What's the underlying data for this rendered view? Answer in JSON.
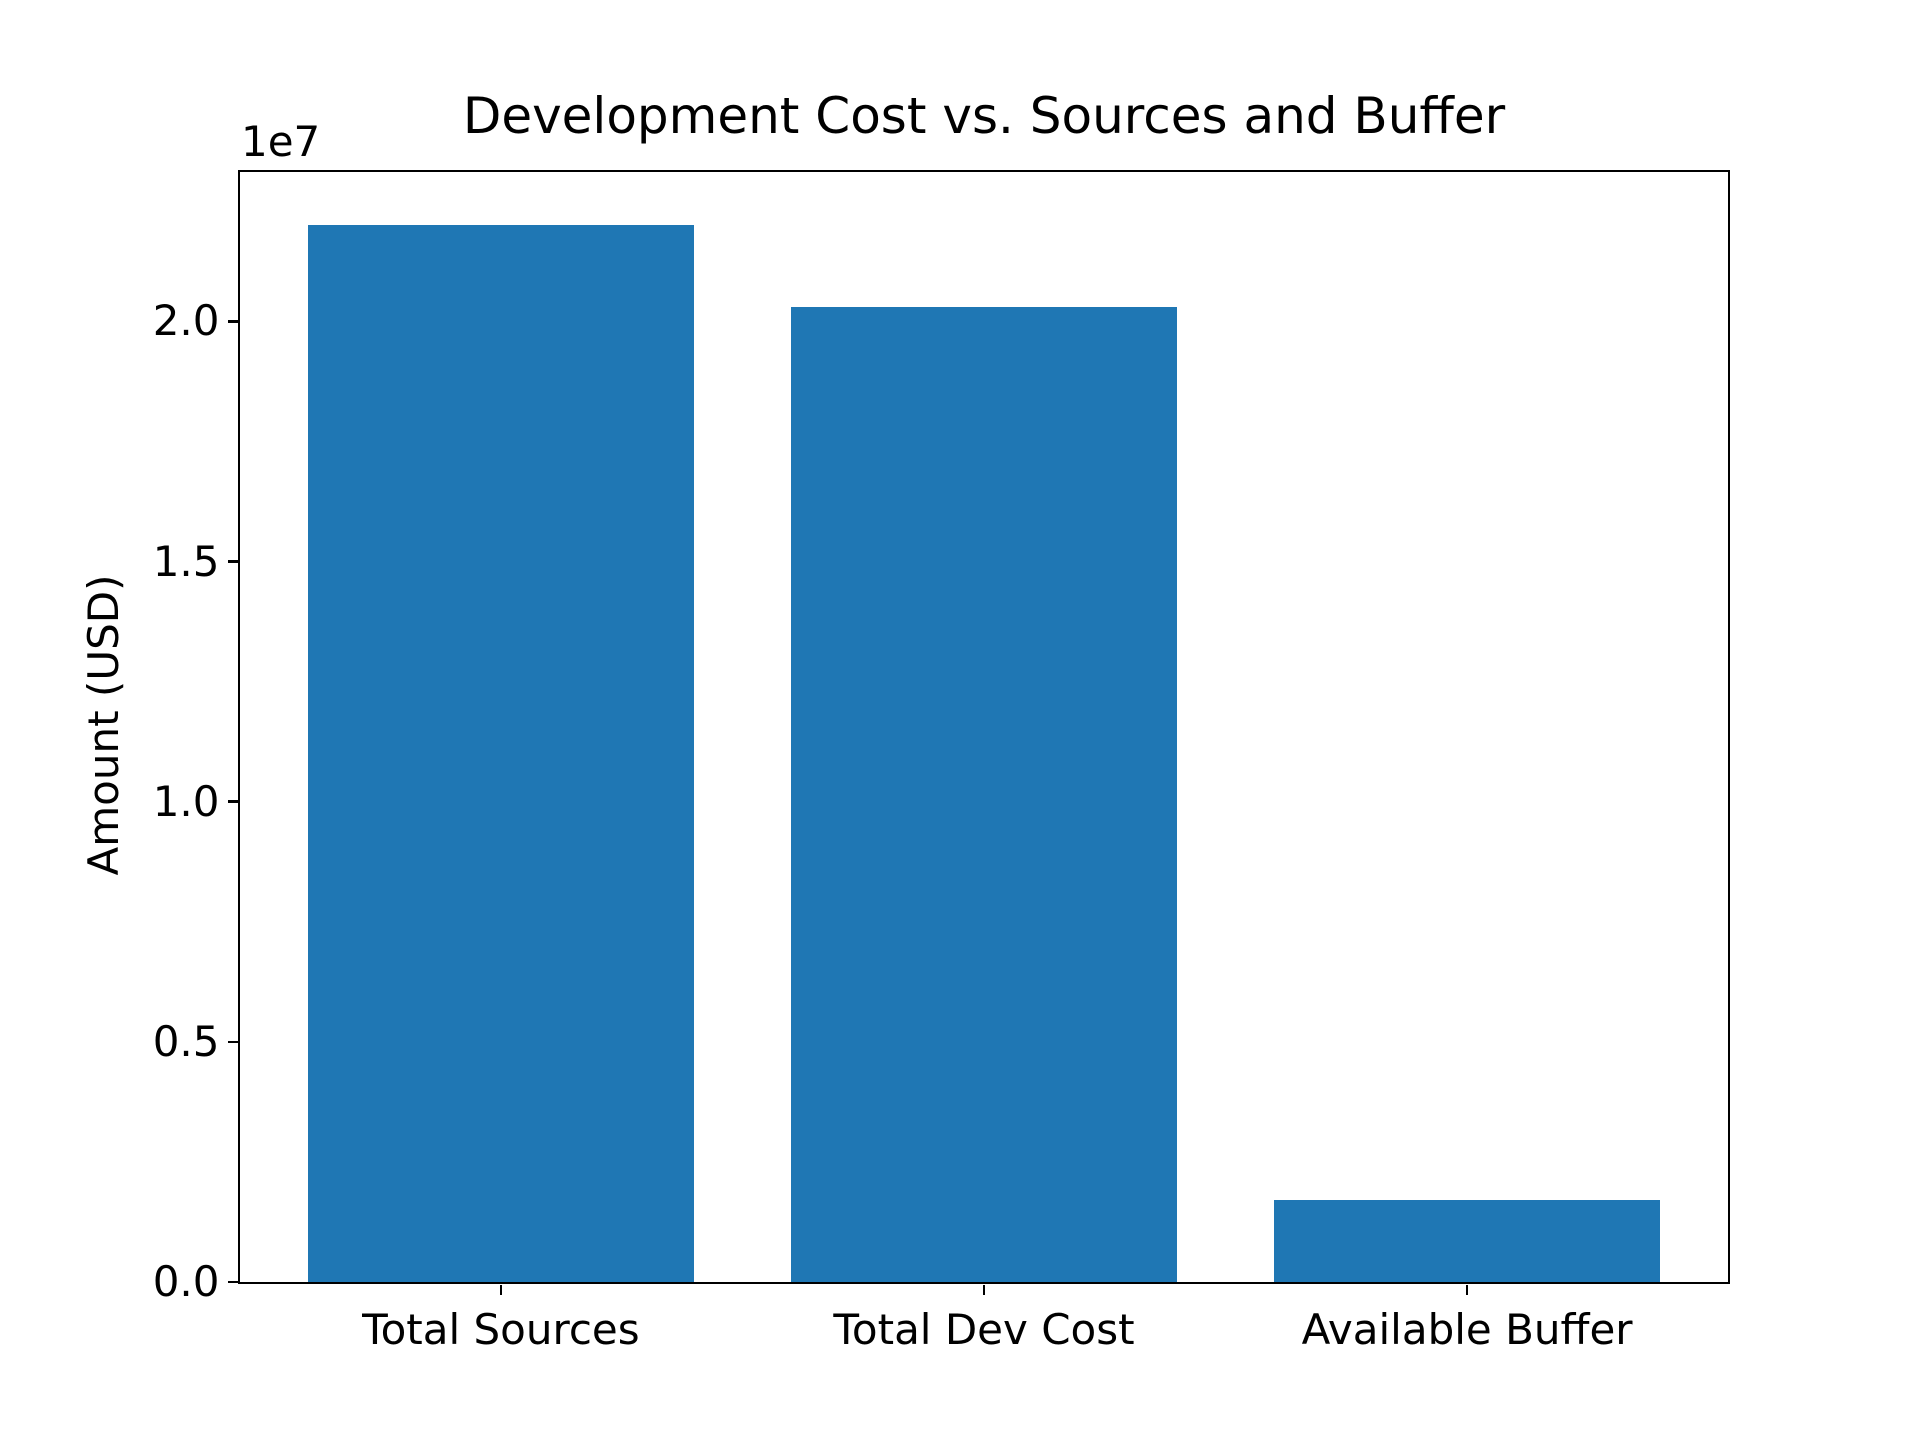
{
  "chart_data": {
    "type": "bar",
    "title": "Development Cost vs. Sources and Buffer",
    "categories": [
      "Total Sources",
      "Total Dev Cost",
      "Available Buffer"
    ],
    "values": [
      22000000,
      20300000,
      1700000
    ],
    "xlabel": "",
    "ylabel": "Amount (USD)",
    "ylim": [
      0,
      23100000
    ],
    "xlim": [
      -0.54,
      2.54
    ],
    "bar_width": 0.8,
    "bar_color": "#1f77b4",
    "yticks": [
      0,
      5000000,
      10000000,
      15000000,
      20000000
    ],
    "ytick_labels": [
      "0.0",
      "0.5",
      "1.0",
      "1.5",
      "2.0"
    ],
    "offset_text": "1e7",
    "grid": false,
    "legend": false,
    "text_color": "#000000",
    "spine_color": "#000000"
  }
}
